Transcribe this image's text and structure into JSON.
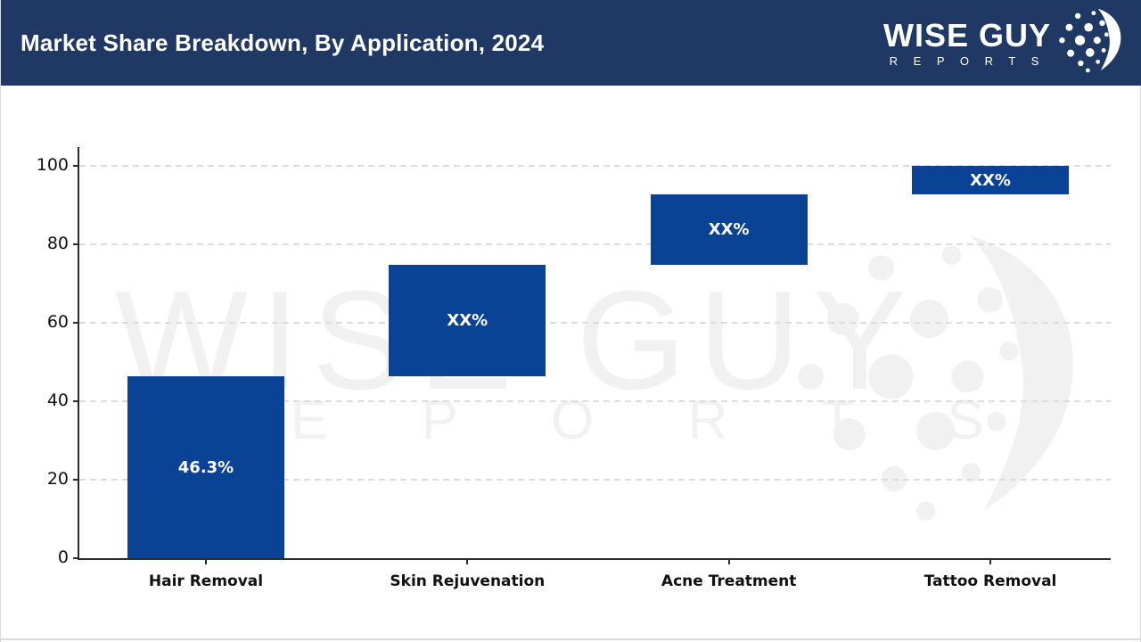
{
  "header": {
    "title": "Market Share Breakdown, By Application, 2024",
    "bg_color": "#1f3864",
    "logo": {
      "line1": "WISE GUY",
      "line2": "R E P O R T S",
      "face_icon": "dotted-head-profile"
    }
  },
  "watermark": {
    "line1": "WISE GUY",
    "line2": "R E P O R T S",
    "face_icon": "dotted-head-profile",
    "color": "#f1f1f1"
  },
  "chart_data": {
    "type": "bar",
    "subtype": "waterfall",
    "title": "Market Share Breakdown, By Application, 2024",
    "categories": [
      "Hair Removal",
      "Skin Rejuvenation",
      "Acne Treatment",
      "Tattoo Removal"
    ],
    "segments": [
      {
        "category": "Hair Removal",
        "start": 0,
        "end": 46.3,
        "label": "46.3%"
      },
      {
        "category": "Skin Rejuvenation",
        "start": 46.3,
        "end": 74.8,
        "label": "XX%"
      },
      {
        "category": "Acne Treatment",
        "start": 74.8,
        "end": 92.7,
        "label": "XX%"
      },
      {
        "category": "Tattoo Removal",
        "start": 92.7,
        "end": 100,
        "label": "XX%"
      }
    ],
    "ylim": [
      0,
      100
    ],
    "yticks": [
      0,
      20,
      40,
      60,
      80,
      100
    ],
    "xlabel": "",
    "ylabel": "",
    "grid": "horizontal-dashed",
    "legend": "none",
    "bar_color": "#0a4396",
    "bar_label_color": "#ffffff",
    "axis_color": "#2b2b2b"
  }
}
